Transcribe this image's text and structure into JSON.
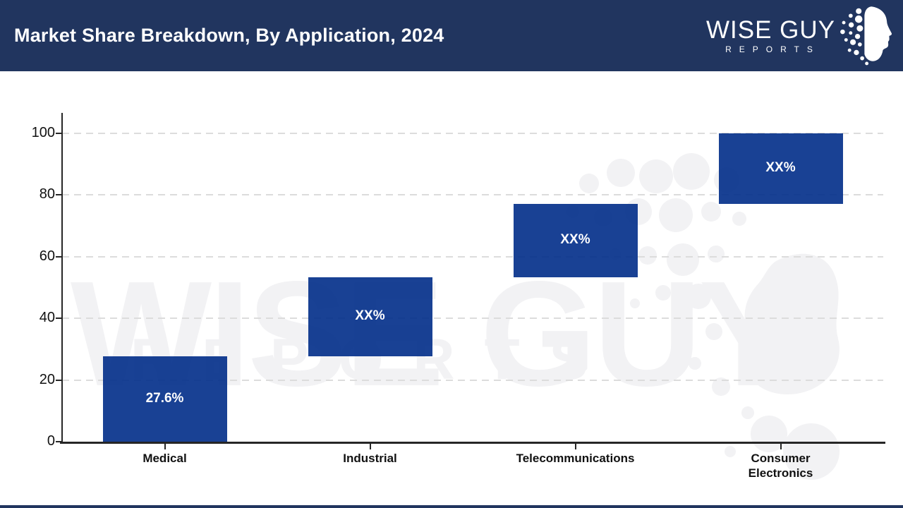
{
  "header": {
    "title": "Market Share Breakdown, By Application, 2024",
    "logo": {
      "line1": "WISE GUY",
      "line2": "REPORTS"
    }
  },
  "watermark": {
    "line1": "WISE GUY",
    "line2": "REPORTS"
  },
  "colors": {
    "header_navy": "#21355f",
    "bar_blue": "#04418f",
    "gridline_gray": "#dcdcdc",
    "watermark_gray": "#f2f2f4",
    "axis_dark": "#262626",
    "label_white": "#ffffff"
  },
  "chart_data": {
    "type": "bar",
    "subtype": "waterfall",
    "title": "Market Share Breakdown, By Application, 2024",
    "categories": [
      "Medical",
      "Industrial",
      "Telecommunications",
      "Consumer Electronics"
    ],
    "tick_label_lines": [
      [
        "Medical"
      ],
      [
        "Industrial"
      ],
      [
        "Telecommunications"
      ],
      [
        "Consumer",
        "Electronics"
      ]
    ],
    "bars": [
      {
        "category": "Medical",
        "start": 0,
        "end": 27.6,
        "label": "27.6%"
      },
      {
        "category": "Industrial",
        "start": 27.6,
        "end": 53.4,
        "label": "XX%"
      },
      {
        "category": "Telecommunications",
        "start": 53.4,
        "end": 77.2,
        "label": "XX%"
      },
      {
        "category": "Consumer Electronics",
        "start": 77.2,
        "end": 100,
        "label": "XX%"
      }
    ],
    "ylim": [
      0,
      100
    ],
    "yticks": [
      0,
      20,
      40,
      60,
      80,
      100
    ],
    "xlabel": "",
    "ylabel": "",
    "grid": "dashed-horizontal",
    "legend": "none"
  }
}
